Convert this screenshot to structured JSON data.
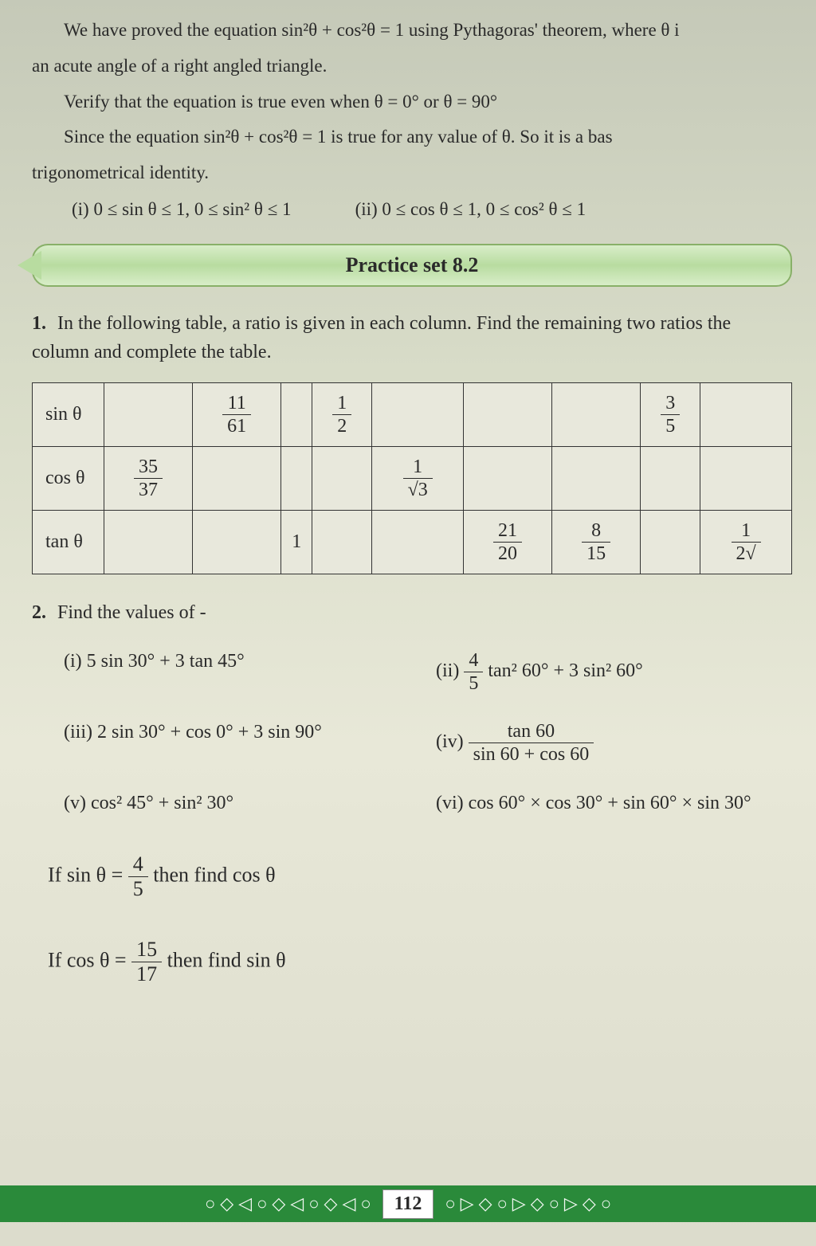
{
  "intro": {
    "p1": "We have proved the equation sin²θ + cos²θ = 1 using Pythagoras' theorem, where θ i",
    "p1b": "an acute angle of a right angled triangle.",
    "p2": "Verify that the equation is true even when θ = 0° or θ = 90°",
    "p3": "Since the equation sin²θ + cos²θ = 1 is true for any value of θ. So it is a bas",
    "p3b": "trigonometrical identity.",
    "ineq1": "(i) 0 ≤ sin θ ≤ 1,   0 ≤ sin² θ ≤ 1",
    "ineq2": "(ii) 0 ≤ cos θ ≤ 1,   0 ≤ cos² θ ≤ 1"
  },
  "banner": "Practice set 8.2",
  "q1": {
    "num": "1.",
    "text": "In the following table, a ratio is given in each column. Find the remaining two ratios the column and complete the table."
  },
  "table": {
    "rows": [
      "sin θ",
      "cos θ",
      "tan θ"
    ],
    "cells": [
      [
        "",
        {
          "n": "11",
          "d": "61"
        },
        "",
        {
          "n": "1",
          "d": "2"
        },
        "",
        "",
        "",
        {
          "n": "3",
          "d": "5"
        },
        ""
      ],
      [
        {
          "n": "35",
          "d": "37"
        },
        "",
        "",
        "",
        {
          "n": "1",
          "d": "√3"
        },
        "",
        "",
        "",
        ""
      ],
      [
        "",
        "",
        "1",
        "",
        "",
        {
          "n": "21",
          "d": "20"
        },
        {
          "n": "8",
          "d": "15"
        },
        "",
        {
          "n": "1",
          "d": "2√"
        }
      ]
    ]
  },
  "q2": {
    "num": "2.",
    "text": "Find the values of -",
    "parts": [
      "(i) 5 sin 30° + 3 tan 45°",
      "(ii) ⁴⁄₅ tan² 60° + 3 sin² 60°",
      "(iii) 2 sin 30° + cos 0° + 3 sin 90°",
      "(iv) tan 60 / (sin 60 + cos 60)",
      "(v) cos² 45° + sin² 30°",
      "(vi) cos 60° × cos 30° + sin 60° × sin 30°"
    ]
  },
  "q3": {
    "text_a": "If sin θ = ",
    "frac": {
      "n": "4",
      "d": "5"
    },
    "text_b": " then find cos θ"
  },
  "q4": {
    "text_a": "If cos θ = ",
    "frac": {
      "n": "15",
      "d": "17"
    },
    "text_b": " then find sin θ"
  },
  "pagenum": "112",
  "footer_shapes": [
    "○",
    "◇",
    "◁",
    "○",
    "◇",
    "◁",
    "○",
    "◇",
    "◁",
    "○",
    "",
    "○",
    "▷",
    "◇",
    "○",
    "▷",
    "◇",
    "○",
    "▷",
    "◇",
    "○"
  ]
}
